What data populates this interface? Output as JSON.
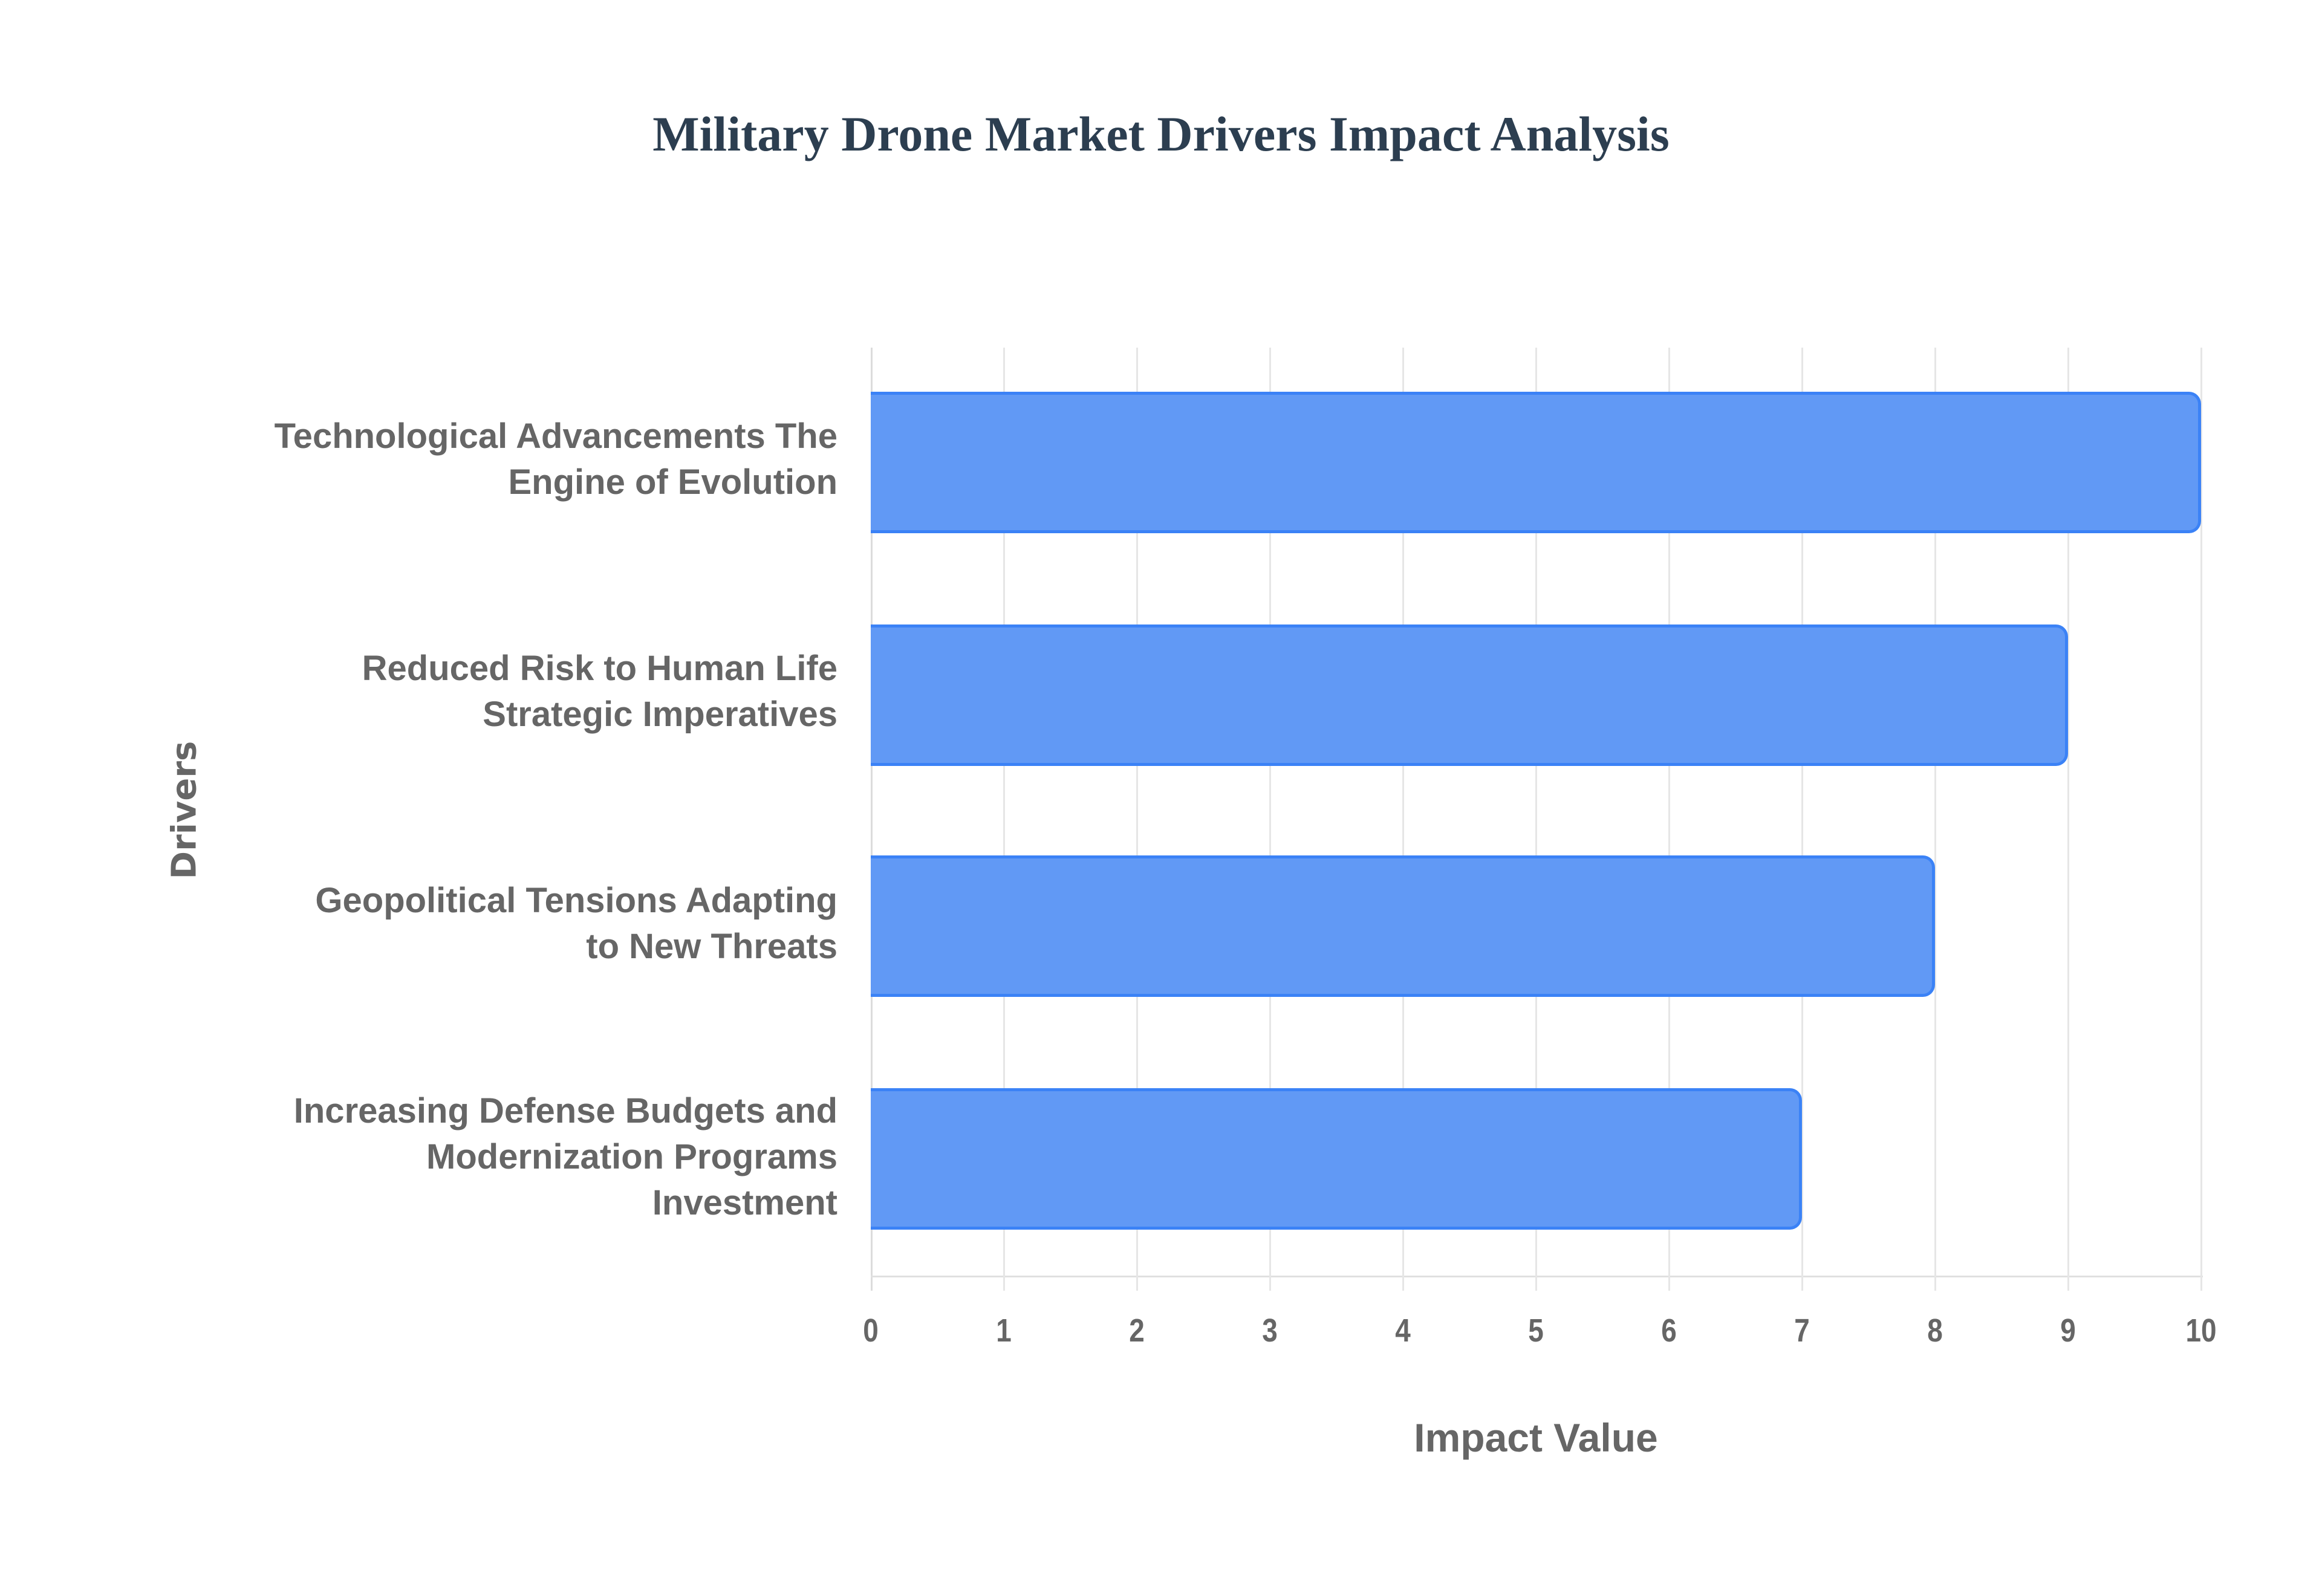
{
  "chart_data": {
    "type": "bar",
    "orientation": "horizontal",
    "title": "Military Drone Market Drivers Impact Analysis",
    "xlabel": "Impact Value",
    "ylabel": "Drivers",
    "xlim": [
      0,
      10
    ],
    "x_ticks": [
      "0",
      "1",
      "2",
      "3",
      "4",
      "5",
      "6",
      "7",
      "8",
      "9",
      "10"
    ],
    "grid": true,
    "legend": null,
    "categories": [
      "Technological Advancements The Engine of Evolution",
      "Reduced Risk to Human Life Strategic Imperatives",
      "Geopolitical Tensions Adapting to New Threats",
      "Increasing Defense Budgets and Modernization Programs Investment"
    ],
    "values": [
      10,
      9,
      8,
      7
    ],
    "colors": {
      "bar_fill": "#6199f5",
      "bar_border": "#3b82f6",
      "title": "#2c3e50",
      "axis_text": "#666666",
      "grid": "#e6e6e6"
    }
  },
  "labels": {
    "title": "Military Drone Market Drivers Impact Analysis",
    "xlabel": "Impact Value",
    "ylabel": "Drivers",
    "cat0": [
      "Technological Advancements The",
      "Engine of Evolution"
    ],
    "cat1": [
      "Reduced Risk to Human Life",
      "Strategic Imperatives"
    ],
    "cat2": [
      "Geopolitical Tensions Adapting",
      "to New Threats"
    ],
    "cat3": [
      "Increasing Defense Budgets and",
      "Modernization Programs",
      "Investment"
    ]
  }
}
